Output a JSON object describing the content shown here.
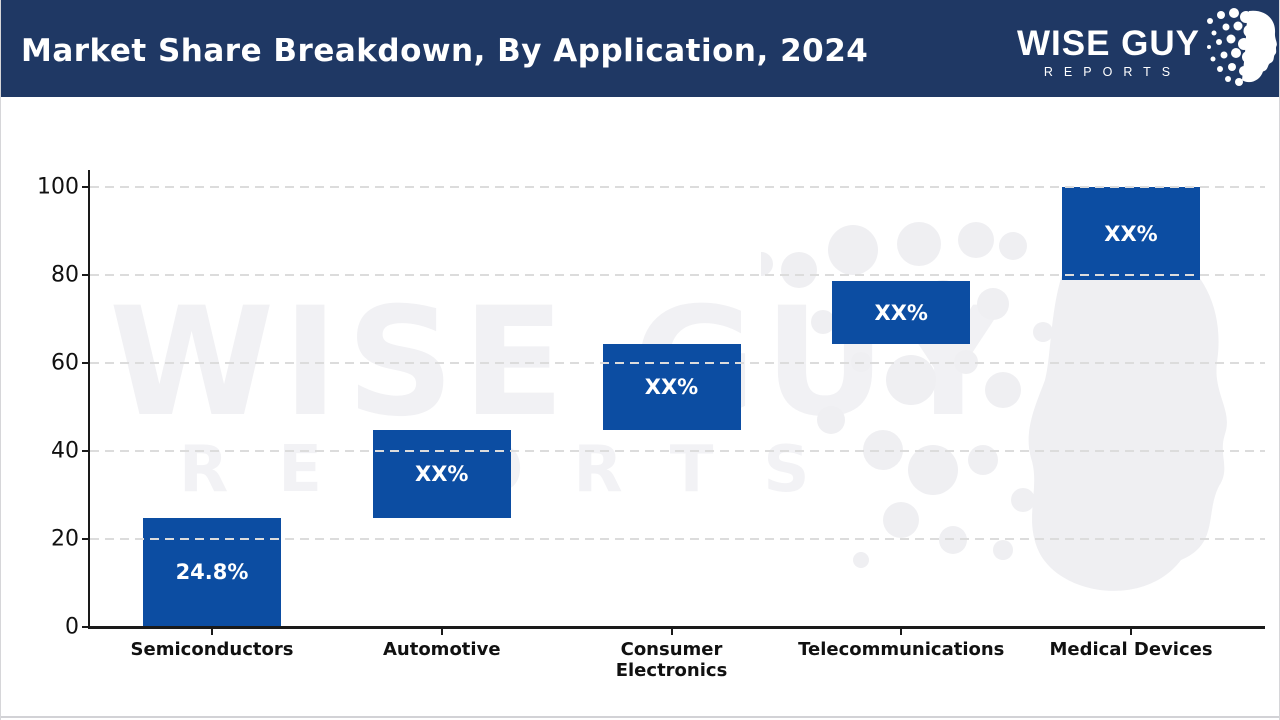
{
  "header": {
    "title": "Market Share Breakdown, By Application, 2024",
    "background_color": "#1f3864",
    "logo": {
      "line1": "WISE GUY",
      "line2": "REPORTS"
    }
  },
  "watermark": {
    "line1": "WISE GUY",
    "line2": "REPORTS"
  },
  "chart_data": {
    "type": "bar",
    "subtype": "waterfall",
    "title": "Market Share Breakdown, By Application, 2024",
    "xlabel": "",
    "ylabel": "",
    "ylim": [
      0,
      105
    ],
    "y_ticks": [
      0,
      20,
      40,
      60,
      80,
      100
    ],
    "grid": true,
    "gridline_color": "#dcdcdc",
    "bar_color": "#0c4da2",
    "bar_label_color": "#ffffff",
    "legend": null,
    "categories": [
      {
        "lines": [
          "Semiconductors"
        ]
      },
      {
        "lines": [
          "Automotive"
        ]
      },
      {
        "lines": [
          "Consumer",
          "Electronics"
        ]
      },
      {
        "lines": [
          "Telecommunications"
        ]
      },
      {
        "lines": [
          "Medical Devices"
        ]
      }
    ],
    "segments": [
      {
        "category": "Semiconductors",
        "start": 0,
        "end": 24.8,
        "label": "24.8%"
      },
      {
        "category": "Automotive",
        "start": 24.8,
        "end": 44.8,
        "label": "XX%"
      },
      {
        "category": "Consumer Electronics",
        "start": 44.8,
        "end": 64.3,
        "label": "XX%"
      },
      {
        "category": "Telecommunications",
        "start": 64.3,
        "end": 78.6,
        "label": "XX%"
      },
      {
        "category": "Medical Devices",
        "start": 78.8,
        "end": 100,
        "label": "XX%"
      }
    ]
  }
}
